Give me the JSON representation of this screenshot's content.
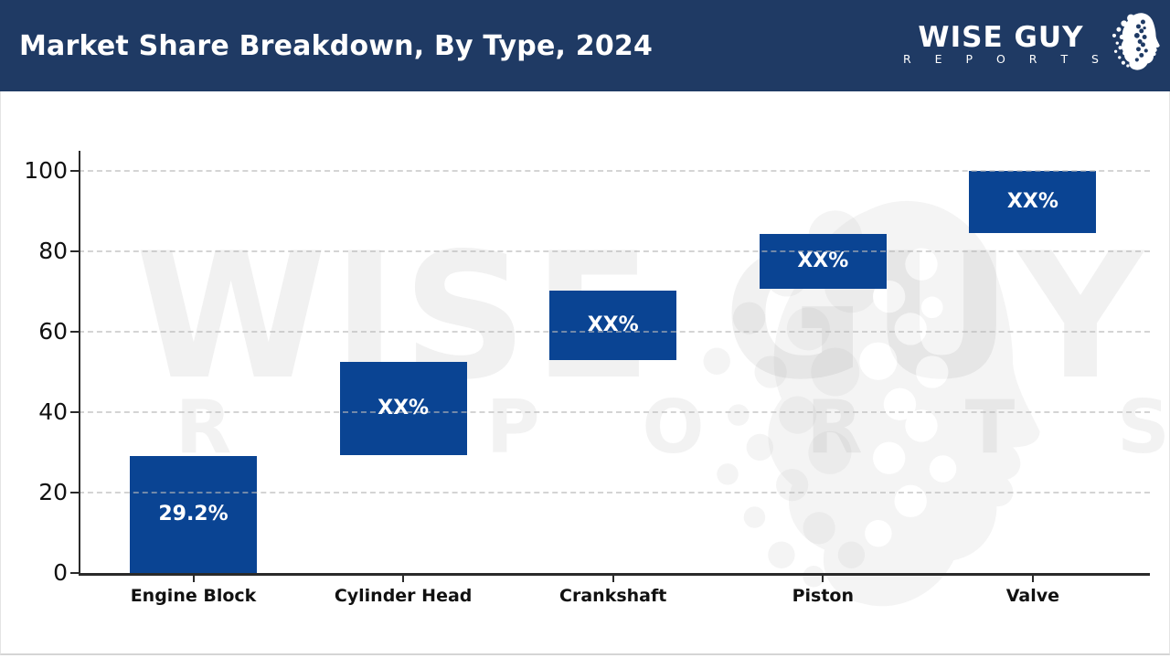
{
  "header": {
    "title": "Market Share Breakdown, By Type, 2024",
    "logo": {
      "line1": "WISE GUY",
      "line2": "R E P O R T S"
    }
  },
  "watermark": {
    "line1": "WISE GUY",
    "line2": "R E P O R T S"
  },
  "colors": {
    "header_bg": "#1F3A64",
    "bar": "#0A4493",
    "bar_label_text": "#ffffff",
    "title_text": "#ffffff",
    "axis": "#2a2a2a",
    "gridline": "#c0c0c0",
    "tick_label_text": "#111111"
  },
  "chart_data": {
    "type": "bar",
    "subtype": "waterfall",
    "title": "Market Share Breakdown, By Type, 2024",
    "categories": [
      "Engine Block",
      "Cylinder Head",
      "Crankshaft",
      "Piston",
      "Valve"
    ],
    "bars": [
      {
        "category": "Engine Block",
        "from": 0,
        "to": 29.2,
        "label": "29.2%"
      },
      {
        "category": "Cylinder Head",
        "from": 29.3,
        "to": 52.5,
        "label": "XX%"
      },
      {
        "category": "Crankshaft",
        "from": 52.9,
        "to": 70.2,
        "label": "XX%"
      },
      {
        "category": "Piston",
        "from": 70.6,
        "to": 84.3,
        "label": "XX%"
      },
      {
        "category": "Valve",
        "from": 84.6,
        "to": 100,
        "label": "XX%"
      }
    ],
    "yticks": [
      0,
      20,
      40,
      60,
      80,
      100
    ],
    "ylim": [
      0,
      105
    ],
    "grid": "horizontal-dashed",
    "legend": "none",
    "xlabel": "",
    "ylabel": ""
  }
}
